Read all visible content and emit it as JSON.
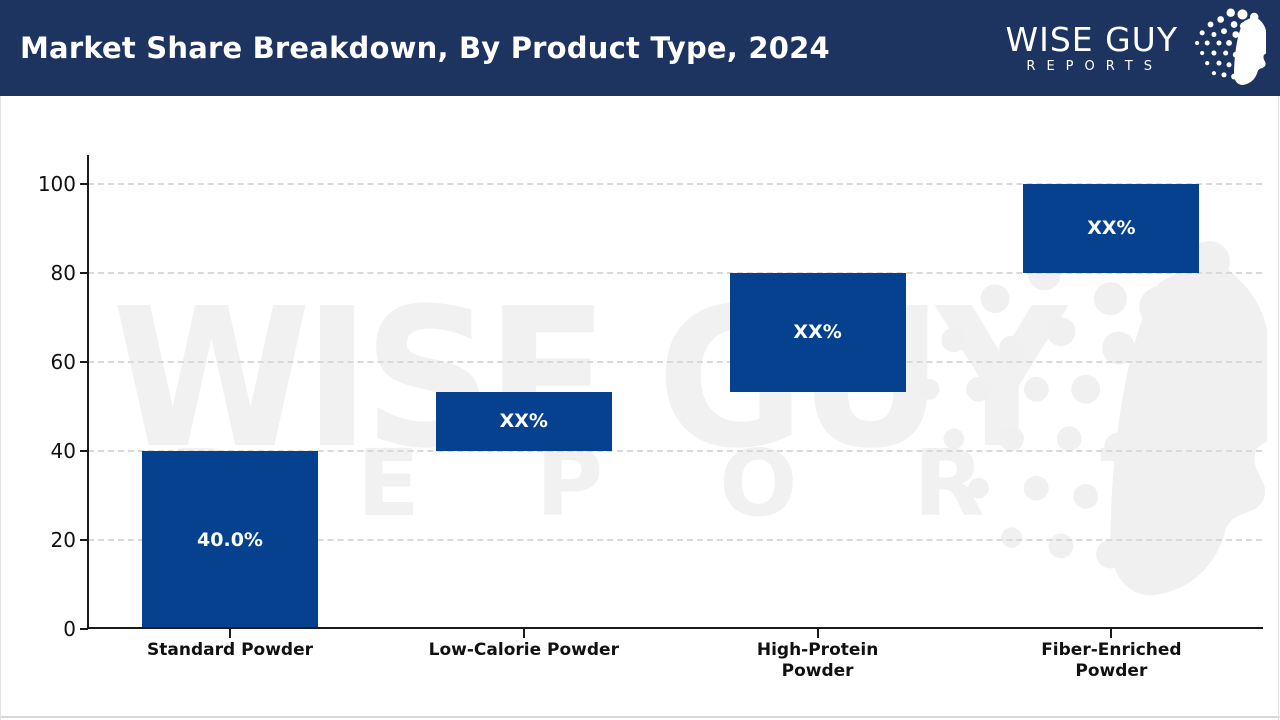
{
  "header": {
    "title": "Market Share Breakdown, By Product Type, 2024",
    "bg_color": "#1e3460",
    "logo": {
      "name": "WISE GUY",
      "sub": "REPORTS"
    }
  },
  "watermark": {
    "line1": "WISE GUY",
    "line2": "R E P O R T S"
  },
  "chart_data": {
    "type": "bar",
    "subtype": "waterfall",
    "title": "Market Share Breakdown, By Product Type, 2024",
    "categories": [
      "Standard Powder",
      "Low-Calorie Powder",
      "High-Protein\nPowder",
      "Fiber-Enriched\nPowder"
    ],
    "segments": [
      {
        "category": "Standard Powder",
        "start": 0,
        "end": 40,
        "label": "40.0%"
      },
      {
        "category": "Low-Calorie Powder",
        "start": 40,
        "end": 53.3,
        "label": "XX%"
      },
      {
        "category": "High-Protein Powder",
        "start": 53.3,
        "end": 80,
        "label": "XX%"
      },
      {
        "category": "Fiber-Enriched Powder",
        "start": 80,
        "end": 100,
        "label": "XX%"
      }
    ],
    "y_ticks": [
      0,
      20,
      40,
      60,
      80,
      100
    ],
    "ylim": [
      0,
      106
    ],
    "xlabel": "",
    "ylabel": "",
    "legend": "none",
    "grid": {
      "horizontal": true,
      "style": "dashed",
      "color": "#d9d9d9"
    },
    "bar_color": "#05418f",
    "bar_label_color": "#ffffff",
    "axis_color": "#1a1a1a"
  }
}
